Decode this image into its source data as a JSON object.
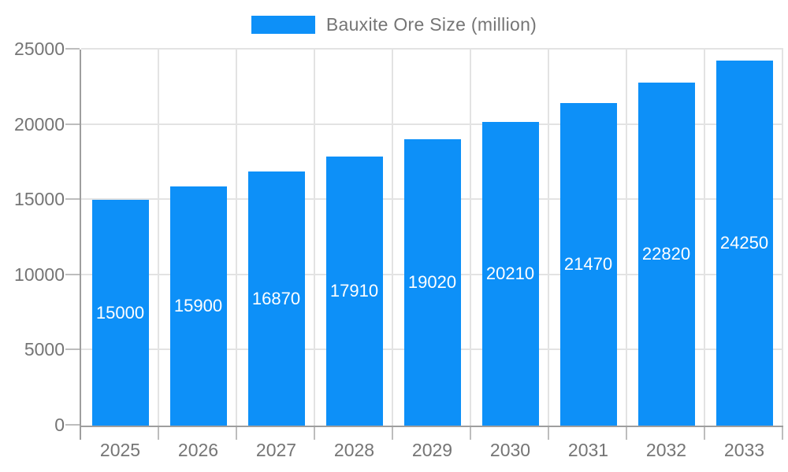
{
  "chart_data": {
    "type": "bar",
    "title": "",
    "legend": {
      "label": "Bauxite Ore Size (million)",
      "position": "top-center"
    },
    "categories": [
      "2025",
      "2026",
      "2027",
      "2028",
      "2029",
      "2030",
      "2031",
      "2032",
      "2033"
    ],
    "series": [
      {
        "name": "Bauxite Ore Size (million)",
        "values": [
          15000,
          15900,
          16870,
          17910,
          19020,
          20210,
          21470,
          22820,
          24250
        ]
      }
    ],
    "bar_value_labels": [
      "15000",
      "15900",
      "16870",
      "17910",
      "19020",
      "20210",
      "21470",
      "22820",
      "24250"
    ],
    "xlabel": "",
    "ylabel": "",
    "ylim": [
      0,
      25000
    ],
    "ytick_interval": 5000,
    "ytick_labels": [
      "0",
      "5000",
      "10000",
      "15000",
      "20000",
      "25000"
    ],
    "grid": true,
    "colors": {
      "bar": "#0d90f8",
      "bar_label_text": "#ffffff",
      "axis_text": "#757575",
      "gridline": "#e3e3e3",
      "axis_line": "#9e9e9e",
      "tick": "#bdbdbd",
      "background": "#ffffff"
    }
  }
}
